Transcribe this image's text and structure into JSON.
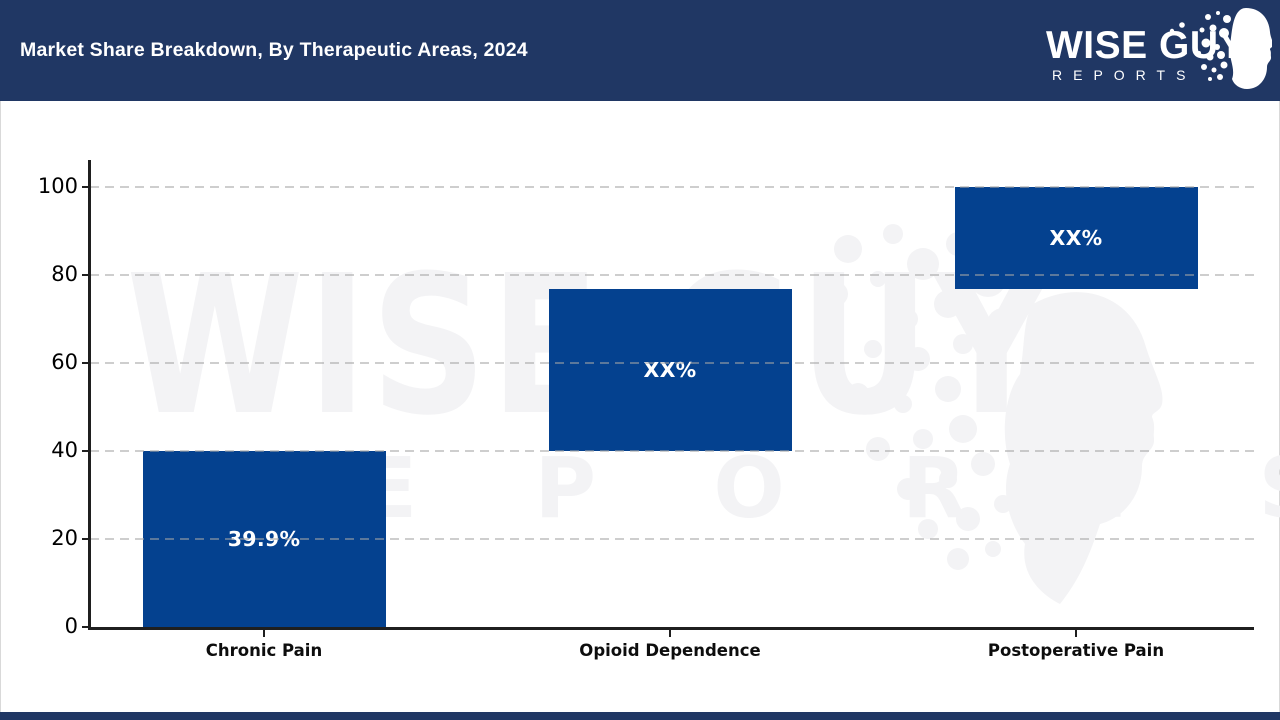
{
  "header": {
    "title": "Market Share Breakdown, By Therapeutic Areas, 2024",
    "logo": {
      "name": "WISE GUY REPORTS",
      "line1": "WISE GUY",
      "line2": "REPORTS"
    }
  },
  "watermark": {
    "line1": "WISE GUY",
    "line2": "R E P O R T S"
  },
  "chart_data": {
    "type": "bar",
    "subtype": "floating_segment_waterfall",
    "title": "Market Share Breakdown, By Therapeutic Areas, 2024",
    "categories": [
      "Chronic Pain",
      "Opioid Dependence",
      "Postoperative Pain"
    ],
    "segments": [
      {
        "category": "Chronic Pain",
        "from": 0,
        "to": 39.9,
        "label": "39.9%"
      },
      {
        "category": "Opioid Dependence",
        "from": 40,
        "to": 76.8,
        "label": "XX%"
      },
      {
        "category": "Postoperative Pain",
        "from": 76.8,
        "to": 100,
        "label": "XX%"
      }
    ],
    "ylim": [
      0,
      100
    ],
    "yticks": [
      0,
      20,
      40,
      60,
      80,
      100
    ],
    "grid": "horizontal_dashed",
    "legend": "none",
    "xlabel": "",
    "ylabel": "",
    "colors": {
      "bar": "#04418f",
      "header_bg": "#203764",
      "footer_bg": "#203764",
      "grid": "#c8c8c8",
      "axis": "#1f1f1f",
      "bar_label": "#ffffff",
      "watermark": "#f3f3f5"
    }
  }
}
